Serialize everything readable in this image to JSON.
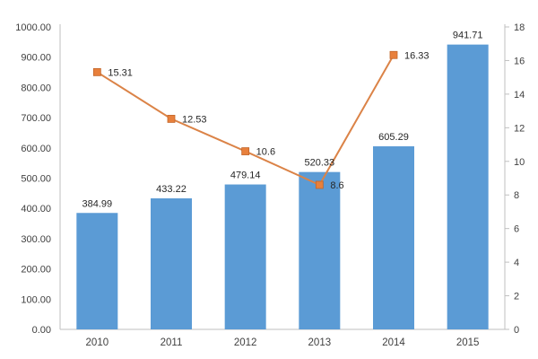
{
  "chart_data": {
    "type": "combo",
    "title": "",
    "legend": "none",
    "grid": false,
    "categories": [
      "2010",
      "2011",
      "2012",
      "2013",
      "2014",
      "2015"
    ],
    "series": [
      {
        "name": "value-bars",
        "type": "bar",
        "axis": "left",
        "color": "#5B9BD5",
        "values": [
          384.99,
          433.22,
          479.14,
          520.33,
          605.29,
          941.71
        ],
        "data_labels": [
          "384.99",
          "433.22",
          "479.14",
          "520.33",
          "605.29",
          "941.71"
        ]
      },
      {
        "name": "growth-line",
        "type": "line",
        "axis": "right",
        "color": "#DB8347",
        "marker_color": "#E8803C",
        "marker_border_color": "#C2662A",
        "values": [
          15.31,
          12.53,
          10.6,
          8.6,
          16.33
        ],
        "data_labels": [
          "15.31",
          "12.53",
          "10.6",
          "8.6",
          "16.33"
        ]
      }
    ],
    "left_axis": {
      "min": 0,
      "max": 1000,
      "tick_labels": [
        "0.00",
        "100.00",
        "200.00",
        "300.00",
        "400.00",
        "500.00",
        "600.00",
        "700.00",
        "800.00",
        "900.00",
        "1000.00"
      ]
    },
    "right_axis": {
      "min": 0,
      "max": 18,
      "tick_labels": [
        "0",
        "2",
        "4",
        "6",
        "8",
        "10",
        "12",
        "14",
        "16",
        "18"
      ]
    }
  }
}
